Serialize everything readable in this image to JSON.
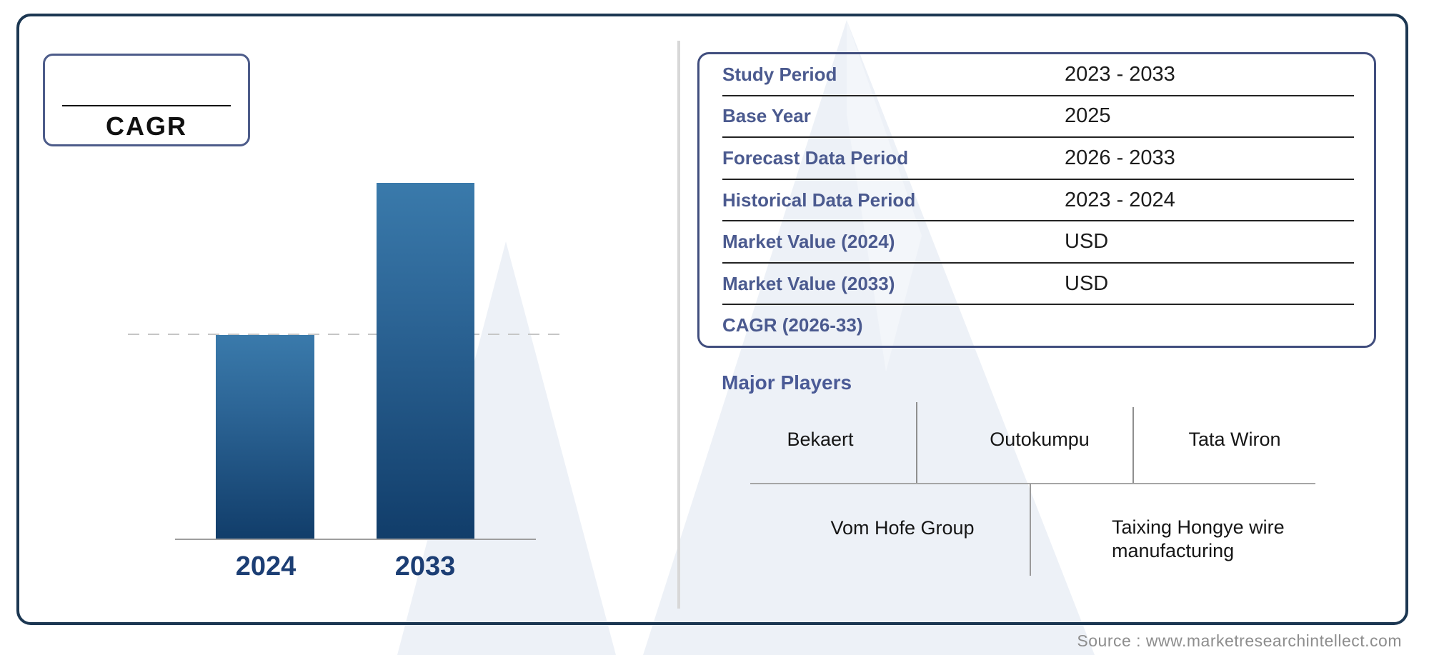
{
  "cagr_box": {
    "label": "CAGR",
    "value": ""
  },
  "chart_data": {
    "type": "bar",
    "categories": [
      "2024",
      "2033"
    ],
    "values": [
      286,
      499
    ],
    "value_unit": "relative bar height (no numeric axis shown)",
    "series_note": "2033 bar is full height; 2024 bar is ~57% of it; dashed reference line at 2024 level",
    "title": "",
    "xlabel": "",
    "ylabel": "",
    "grid": false,
    "legend": false,
    "bar_gradient_top": "#3a7aab",
    "bar_gradient_bottom": "#113d6a",
    "tick_label_color": "#1c3e74"
  },
  "info_table": {
    "rows": [
      {
        "label": "Study Period",
        "value": "2023 - 2033"
      },
      {
        "label": "Base Year",
        "value": "2025"
      },
      {
        "label": "Forecast Data Period",
        "value": "2026 - 2033"
      },
      {
        "label": "Historical Data Period",
        "value": "2023 - 2024"
      },
      {
        "label": "Market Value (2024)",
        "value": "USD"
      },
      {
        "label": "Market Value (2033)",
        "value": "USD"
      },
      {
        "label": "CAGR (2026-33)",
        "value": ""
      }
    ]
  },
  "major_players": {
    "heading": "Major Players",
    "row1": [
      "Bekaert",
      "Outokumpu",
      "Tata Wiron"
    ],
    "row2": [
      "Vom Hofe Group",
      "Taixing Hongye wire manufacturing"
    ]
  },
  "footer": {
    "source": "Source : www.marketresearchintellect.com"
  },
  "colors": {
    "outer_frame": "#1c3752",
    "cagr_box_border": "#4d5c8a",
    "table_border": "#414e7e",
    "table_label": "#4b5a8f",
    "table_value": "#1c1c1c",
    "heading_blue": "#4a5a96",
    "year_label": "#1c3e74",
    "divider_gray": "#d8d8d8",
    "watermark": "#edf1f7",
    "source_gray": "#8d8d8d"
  },
  "icons": {
    "watermark_name": "brand-m-watermark"
  }
}
